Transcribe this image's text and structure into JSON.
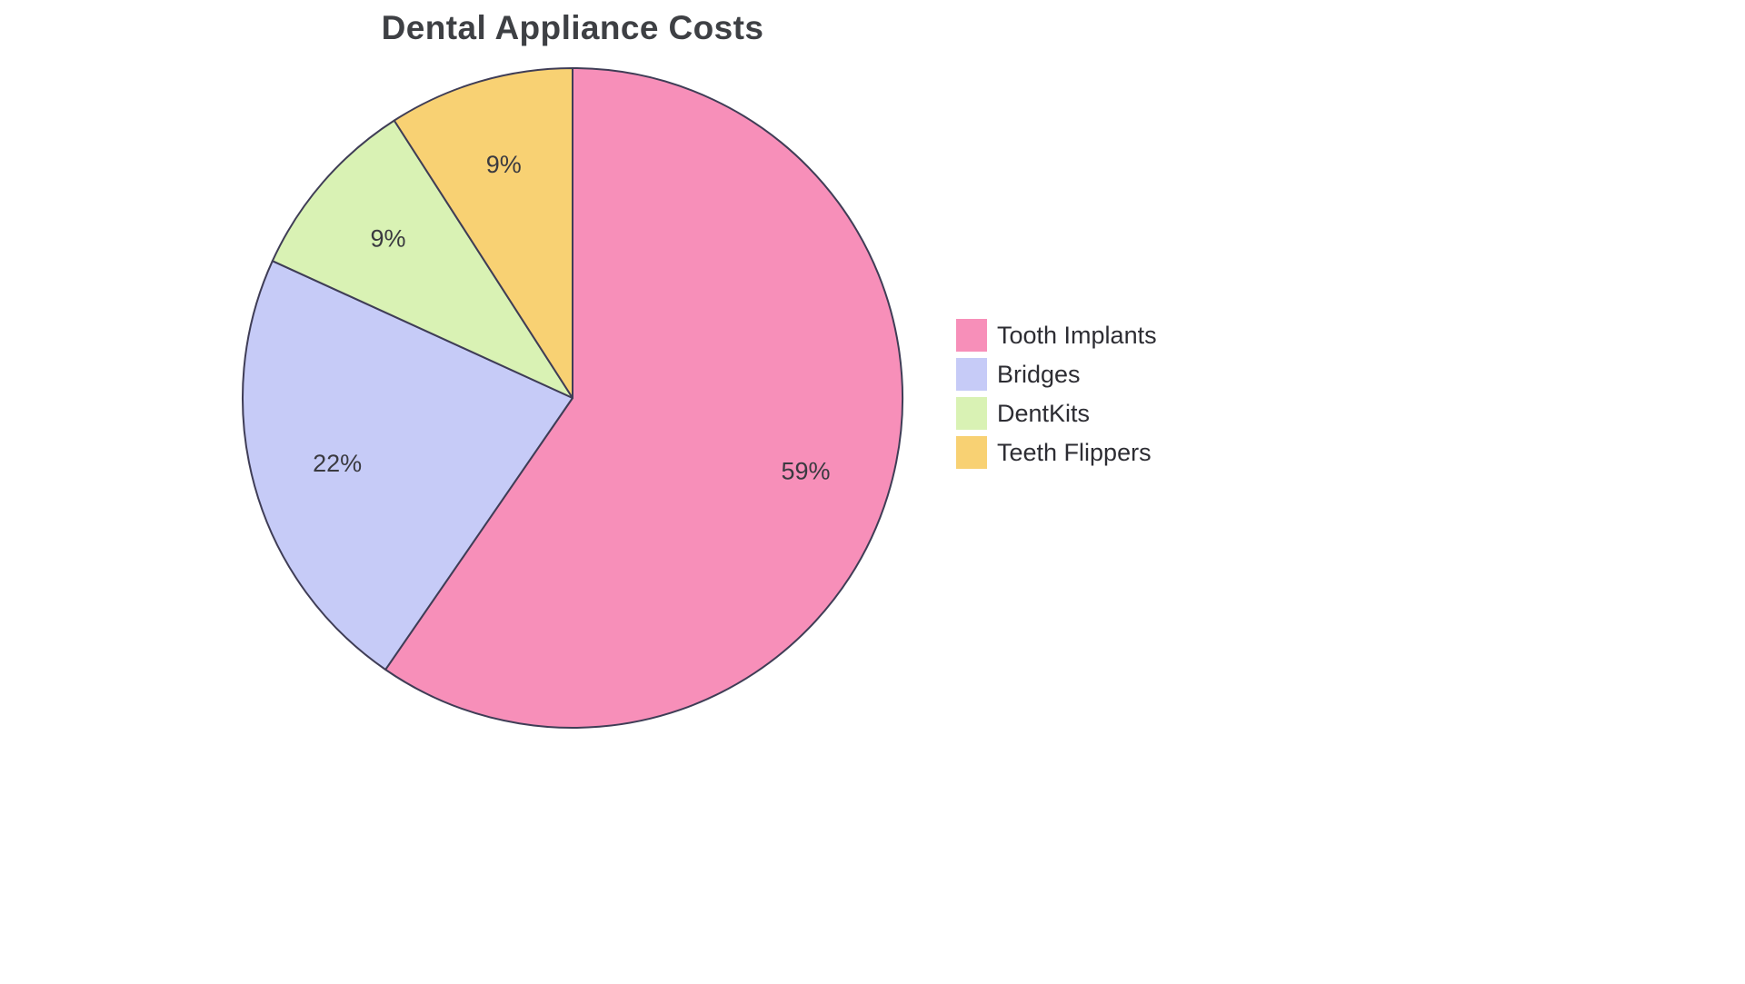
{
  "chart_data": {
    "type": "pie",
    "title": "Dental Appliance Costs",
    "labels": [
      "Tooth Implants",
      "Bridges",
      "DentKits",
      "Teeth Flippers"
    ],
    "values": [
      59,
      22,
      9,
      9
    ],
    "percent_labels": [
      "59%",
      "22%",
      "9%",
      "9%"
    ],
    "colors": [
      "#F78FB9",
      "#C6CBF7",
      "#D9F2B4",
      "#F8D173"
    ],
    "slice_stroke_color": "#3F3D56",
    "start_angle_deg": -90,
    "direction": "clockwise",
    "legend": {
      "position": "right",
      "entries": [
        "Tooth Implants",
        "Bridges",
        "DentKits",
        "Teeth Flippers"
      ]
    },
    "background_color": "#FFFFFF",
    "title_color": "#3E4044",
    "label_text_color": "#3A3A40"
  }
}
